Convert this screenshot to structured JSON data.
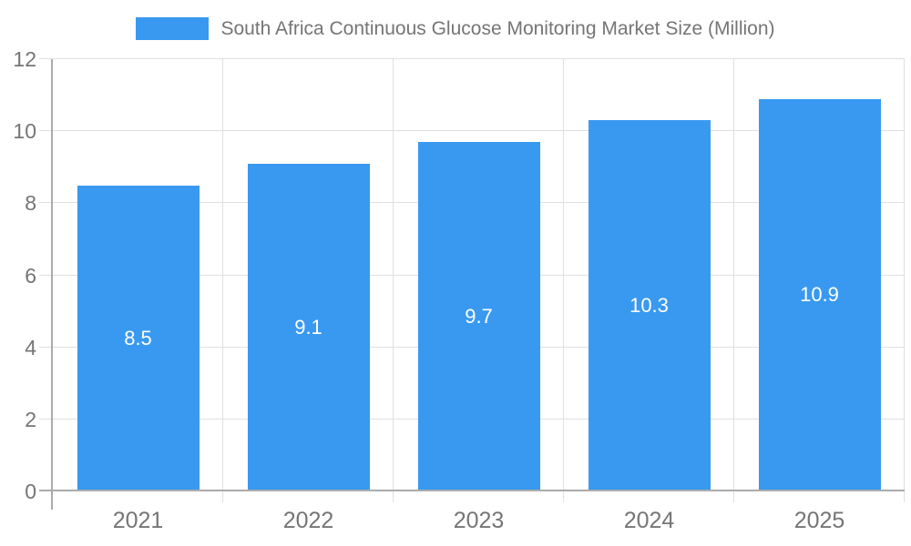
{
  "chart_data": {
    "type": "bar",
    "title": "South Africa Continuous Glucose Monitoring Market Size (Million)",
    "categories": [
      "2021",
      "2022",
      "2023",
      "2024",
      "2025"
    ],
    "values": [
      8.5,
      9.1,
      9.7,
      10.3,
      10.9
    ],
    "yticks": [
      0,
      2,
      4,
      6,
      8,
      10,
      12
    ],
    "ylim": [
      0,
      12
    ],
    "grid": true,
    "legend_position": "top",
    "xlabel": "",
    "ylabel": "",
    "bar_color": "#3999F0",
    "value_label_color": "#FFFFFF",
    "text_color": "#757575",
    "grid_color": "#E0E0E0",
    "axis_color": "#ABABAB",
    "background_color": "#FFFFFF"
  }
}
